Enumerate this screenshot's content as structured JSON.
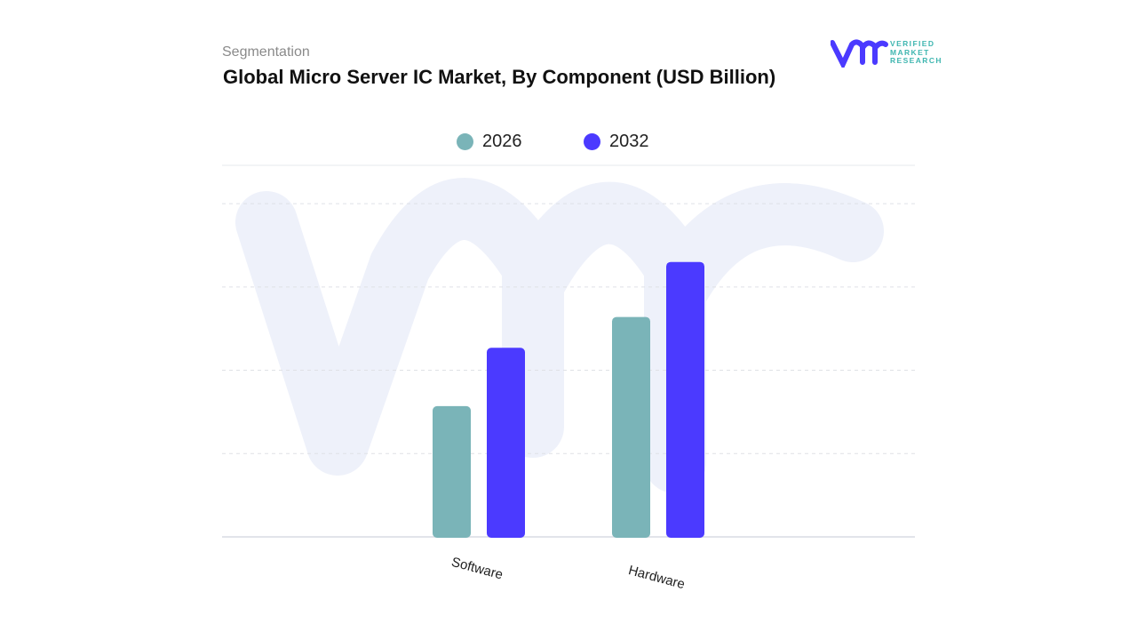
{
  "header": {
    "segment_label": "Segmentation",
    "title": "Global Micro Server IC Market, By Component (USD Billion)"
  },
  "logo": {
    "text_lines": [
      "VERIFIED",
      "MARKET",
      "RESEARCH"
    ]
  },
  "colors": {
    "2026": "#7ab4b8",
    "2032": "#4b3aff",
    "watermark": "#eef1fa"
  },
  "chart_data": {
    "type": "bar",
    "title": "Global Micro Server IC Market, By Component (USD Billion)",
    "categories": [
      "Software",
      "Hardware"
    ],
    "series": [
      {
        "name": "2026",
        "values": [
          1.57,
          2.64
        ],
        "color": "#7ab4b8"
      },
      {
        "name": "2032",
        "values": [
          2.27,
          3.3
        ],
        "color": "#4b3aff"
      }
    ],
    "xlabel": "",
    "ylabel": "",
    "ylim": [
      0,
      4.46
    ],
    "grid": true,
    "legend": "top-center",
    "y_tick_labels_shown": false
  }
}
